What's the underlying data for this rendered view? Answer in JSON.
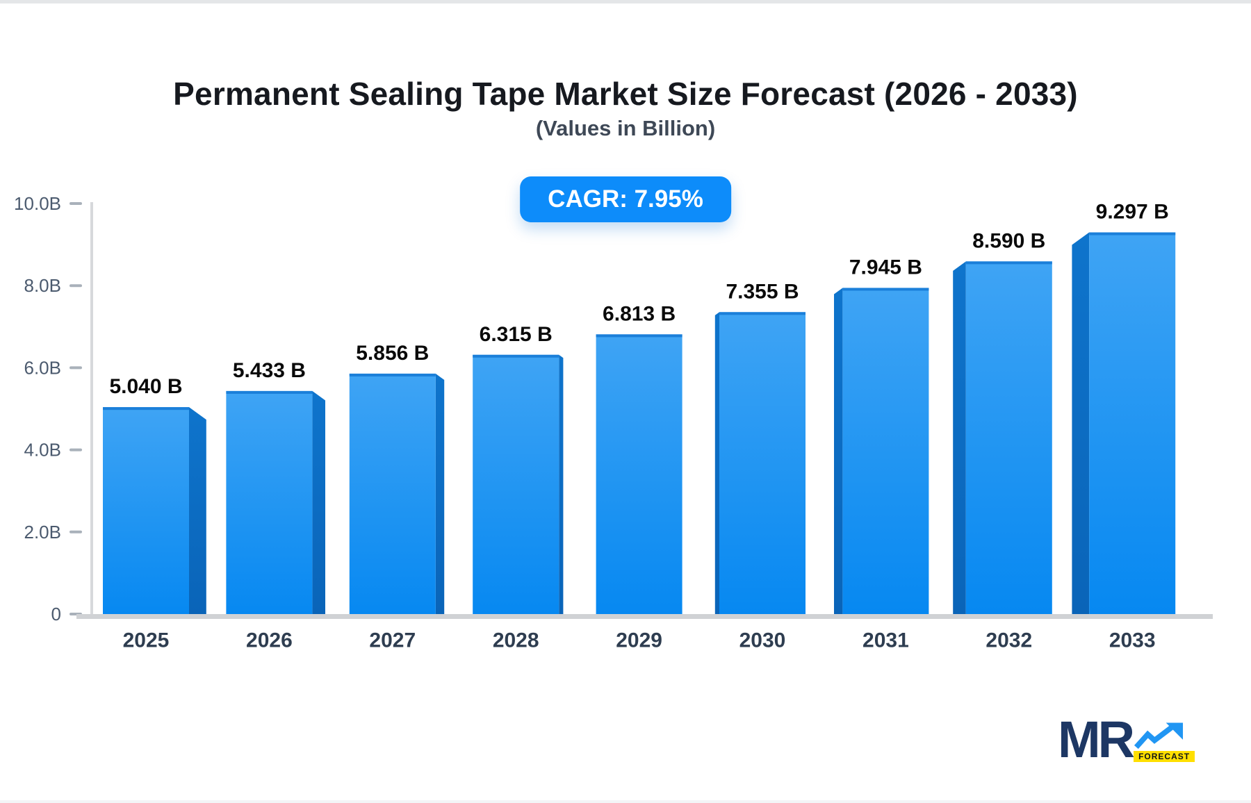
{
  "header": {
    "title": "Permanent Sealing Tape Market Size Forecast (2026 - 2033)",
    "subtitle": "(Values in Billion)",
    "cagr_badge": "CAGR: 7.95%"
  },
  "chart_data": {
    "type": "bar",
    "title": "Permanent Sealing Tape Market Size Forecast (2026 - 2033)",
    "subtitle": "(Values in Billion)",
    "cagr_percent": 7.95,
    "categories": [
      "2025",
      "2026",
      "2027",
      "2028",
      "2029",
      "2030",
      "2031",
      "2032",
      "2033"
    ],
    "values": [
      5.04,
      5.433,
      5.856,
      6.315,
      6.813,
      7.355,
      7.945,
      8.59,
      9.297
    ],
    "value_labels": [
      "5.040 B",
      "5.433 B",
      "5.856 B",
      "6.315 B",
      "6.813 B",
      "7.355 B",
      "7.945 B",
      "8.590 B",
      "9.297 B"
    ],
    "xlabel": "",
    "ylabel": "",
    "ylim": [
      0,
      10
    ],
    "y_ticks": [
      {
        "value": 10,
        "label": "10.0B"
      },
      {
        "value": 8,
        "label": "8.0B"
      },
      {
        "value": 6,
        "label": "6.0B"
      },
      {
        "value": 4,
        "label": "4.0B"
      },
      {
        "value": 2,
        "label": "2.0B"
      },
      {
        "value": 0,
        "label": "0"
      }
    ],
    "grid": false,
    "legend": false,
    "bar_style": "3d-perspective-center-vanishing"
  },
  "colors": {
    "bar_face_top": "#3fa4f4",
    "bar_face_bottom": "#0688f1",
    "bar_side_top": "#0e74cc",
    "bar_side_bottom": "#0a64b8",
    "bar_top_edge": "#1b7fd9",
    "badge_bg": "#0d8cfa",
    "badge_text": "#ffffff",
    "axis_line": "#d7d9dc",
    "baseline": "#d0d2d5",
    "tick": "#a9b1ba",
    "y_label": "#4b5a6e",
    "x_label": "#2e3d50",
    "value_label": "#0a0a0a",
    "title": "#16191f",
    "subtitle": "#3e4856"
  },
  "logo": {
    "brand": "MR",
    "sub": "FORECAST",
    "brand_color": "#1d3764",
    "arrow_color": "#2196f3",
    "sub_bg": "#ffdf00",
    "sub_text_color": "#101418"
  }
}
